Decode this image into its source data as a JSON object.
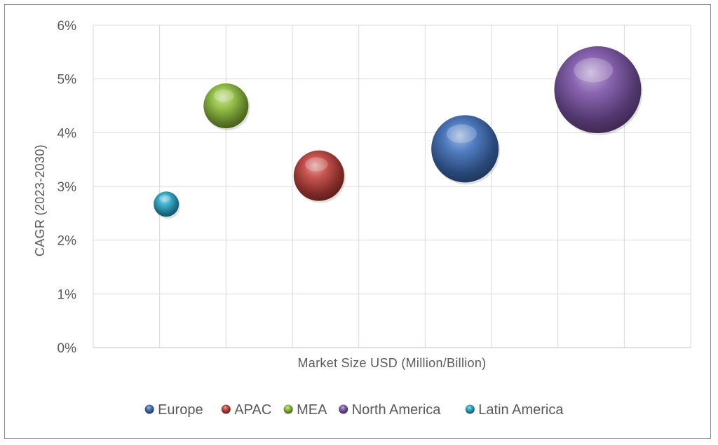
{
  "chart_data": {
    "type": "bubble",
    "title": "",
    "xlabel": "Market Size USD (Million/Billion)",
    "ylabel": "CAGR (2023-2030)",
    "xlim": [
      0,
      9
    ],
    "ylim": [
      0,
      6
    ],
    "y_ticks": [
      "0%",
      "1%",
      "2%",
      "3%",
      "4%",
      "5%",
      "6%"
    ],
    "x_ticks_shown": false,
    "grid": true,
    "legend_position": "bottom",
    "series": [
      {
        "name": "Europe",
        "x": 5.6,
        "y": 3.7,
        "size": 48,
        "color": "#3f6fba"
      },
      {
        "name": "APAC",
        "x": 3.4,
        "y": 3.2,
        "size": 36,
        "color": "#c0413b"
      },
      {
        "name": "MEA",
        "x": 2.0,
        "y": 4.5,
        "size": 32,
        "color": "#8fbf3a"
      },
      {
        "name": "North America",
        "x": 7.6,
        "y": 4.8,
        "size": 62,
        "color": "#7d54a8"
      },
      {
        "name": "Latin America",
        "x": 1.1,
        "y": 2.67,
        "size": 18,
        "color": "#2aa8c9"
      }
    ]
  }
}
